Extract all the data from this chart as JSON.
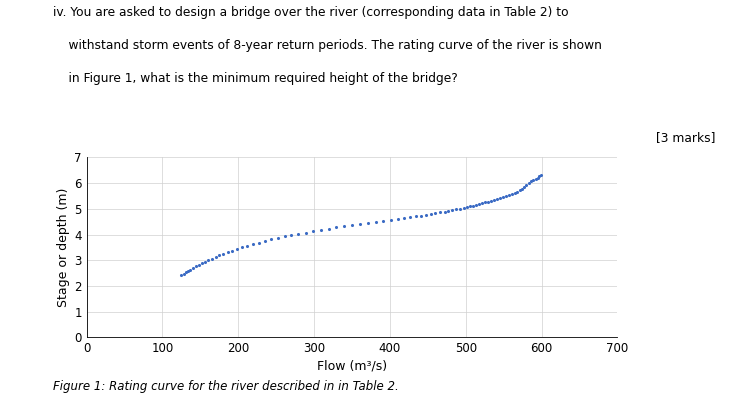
{
  "title_line1": "iv. You are asked to design a bridge over the river (corresponding data in Table 2) to",
  "title_line2": "    withstand storm events of 8-year return periods. The rating curve of the river is shown",
  "title_line3": "    in Figure 1, what is the minimum required height of the bridge?",
  "marks_text": "[3 marks]",
  "xlabel": "Flow (m³/s)",
  "ylabel": "Stage or depth (m)",
  "caption": "Figure 1: Rating curve for the river described in in Table 2.",
  "xlim": [
    0,
    700
  ],
  "ylim": [
    0,
    7
  ],
  "xticks": [
    0,
    100,
    200,
    300,
    400,
    500,
    600,
    700
  ],
  "yticks": [
    0,
    1,
    2,
    3,
    4,
    5,
    6,
    7
  ],
  "dot_color": "#3b6bc4",
  "dot_size": 5,
  "flow_data": [
    125,
    128,
    131,
    134,
    137,
    140,
    144,
    148,
    152,
    156,
    160,
    165,
    170,
    175,
    180,
    186,
    192,
    198,
    205,
    212,
    219,
    227,
    235,
    243,
    252,
    261,
    270,
    279,
    289,
    299,
    309,
    319,
    329,
    340,
    350,
    361,
    371,
    381,
    391,
    401,
    410,
    418,
    426,
    434,
    441,
    448,
    454,
    460,
    466,
    472,
    477,
    482,
    487,
    492,
    497,
    501,
    505,
    509,
    513,
    517,
    521,
    525,
    529,
    533,
    537,
    541,
    545,
    549,
    553,
    557,
    561,
    565,
    568,
    571,
    574,
    577,
    580,
    583,
    586,
    589,
    592,
    595,
    597,
    599
  ],
  "stage_data": [
    2.42,
    2.48,
    2.53,
    2.59,
    2.64,
    2.7,
    2.76,
    2.82,
    2.88,
    2.94,
    3.0,
    3.06,
    3.13,
    3.19,
    3.25,
    3.32,
    3.38,
    3.44,
    3.51,
    3.57,
    3.63,
    3.69,
    3.75,
    3.81,
    3.87,
    3.93,
    3.98,
    4.03,
    4.08,
    4.13,
    4.18,
    4.23,
    4.28,
    4.33,
    4.37,
    4.42,
    4.46,
    4.5,
    4.54,
    4.58,
    4.61,
    4.65,
    4.68,
    4.71,
    4.74,
    4.77,
    4.8,
    4.83,
    4.86,
    4.89,
    4.92,
    4.95,
    4.98,
    5.01,
    5.04,
    5.07,
    5.1,
    5.13,
    5.16,
    5.19,
    5.22,
    5.25,
    5.28,
    5.31,
    5.34,
    5.37,
    5.41,
    5.45,
    5.49,
    5.53,
    5.57,
    5.61,
    5.67,
    5.73,
    5.79,
    5.86,
    5.93,
    6.0,
    6.07,
    6.13,
    6.18,
    6.22,
    6.26,
    6.3
  ]
}
